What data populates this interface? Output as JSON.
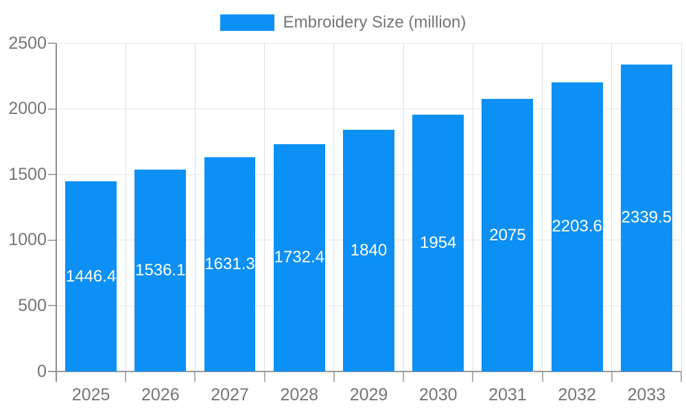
{
  "chart_data": {
    "type": "bar",
    "legend": {
      "label": "Embroidery Size (million)",
      "position": "top-center"
    },
    "categories": [
      "2025",
      "2026",
      "2027",
      "2028",
      "2029",
      "2030",
      "2031",
      "2032",
      "2033"
    ],
    "series": [
      {
        "name": "Embroidery Size (million)",
        "values": [
          1446.4,
          1536.1,
          1631.3,
          1732.4,
          1840,
          1954,
          2075,
          2203.6,
          2339.5
        ],
        "value_labels": [
          "1446.4",
          "1536.1",
          "1631.3",
          "1732.4",
          "1840",
          "1954",
          "2075",
          "2203.6",
          "2339.5"
        ]
      }
    ],
    "ylim": [
      0,
      2500
    ],
    "yticks": [
      0,
      500,
      1000,
      1500,
      2000,
      2500
    ],
    "grid": true,
    "colors": {
      "bar": "#0d90f5",
      "value_label": "#ffffff",
      "axis_text": "#757575",
      "grid_h": "#e7e7e7",
      "grid_v": "#dedede",
      "axis_y_line": "#8a8a8a",
      "axis_x_line": "#9a9a9a",
      "tick": "#adadad",
      "background": "#ffffff"
    }
  }
}
